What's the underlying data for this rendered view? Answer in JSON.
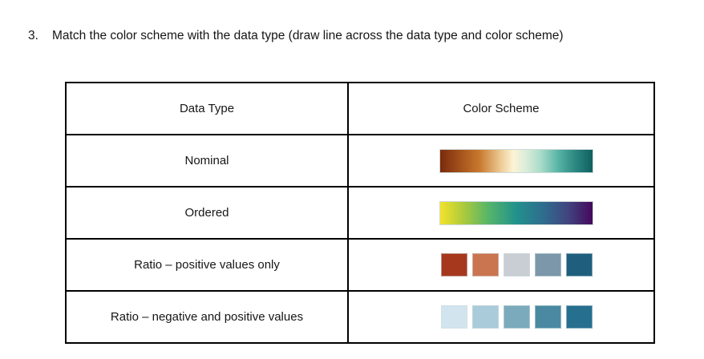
{
  "question": {
    "number": "3.",
    "text": "Match the color scheme with the data type (draw line across the data type and color scheme)"
  },
  "table": {
    "headers": {
      "data_type": "Data Type",
      "color_scheme": "Color Scheme"
    },
    "rows": [
      {
        "label": "Nominal",
        "scheme": {
          "kind": "gradient",
          "stops": [
            {
              "color": "#7A2A0E",
              "pos": 0
            },
            {
              "color": "#A4511B",
              "pos": 13
            },
            {
              "color": "#C97A2F",
              "pos": 26
            },
            {
              "color": "#EECC96",
              "pos": 40
            },
            {
              "color": "#FCF4D4",
              "pos": 48
            },
            {
              "color": "#DCEDDA",
              "pos": 56
            },
            {
              "color": "#A8DCC9",
              "pos": 66
            },
            {
              "color": "#55B2A4",
              "pos": 78
            },
            {
              "color": "#2B8680",
              "pos": 89
            },
            {
              "color": "#0F605F",
              "pos": 100
            }
          ]
        }
      },
      {
        "label": "Ordered",
        "scheme": {
          "kind": "gradient",
          "stops": [
            {
              "color": "#F3E32A",
              "pos": 0
            },
            {
              "color": "#A9C93E",
              "pos": 16
            },
            {
              "color": "#58B668",
              "pos": 31
            },
            {
              "color": "#21918C",
              "pos": 50
            },
            {
              "color": "#2F6C8E",
              "pos": 68
            },
            {
              "color": "#41447F",
              "pos": 84
            },
            {
              "color": "#45085C",
              "pos": 100
            }
          ]
        }
      },
      {
        "label": "Ratio – positive values only",
        "scheme": {
          "kind": "swatches",
          "colors": [
            "#A6381D",
            "#CB7450",
            "#C9CED5",
            "#7C97A9",
            "#1F5F7D"
          ]
        }
      },
      {
        "label": "Ratio – negative and positive values",
        "scheme": {
          "kind": "swatches",
          "colors": [
            "#D2E5EE",
            "#AACBD9",
            "#7CAABD",
            "#4A89A1",
            "#276F8E"
          ]
        }
      }
    ]
  }
}
